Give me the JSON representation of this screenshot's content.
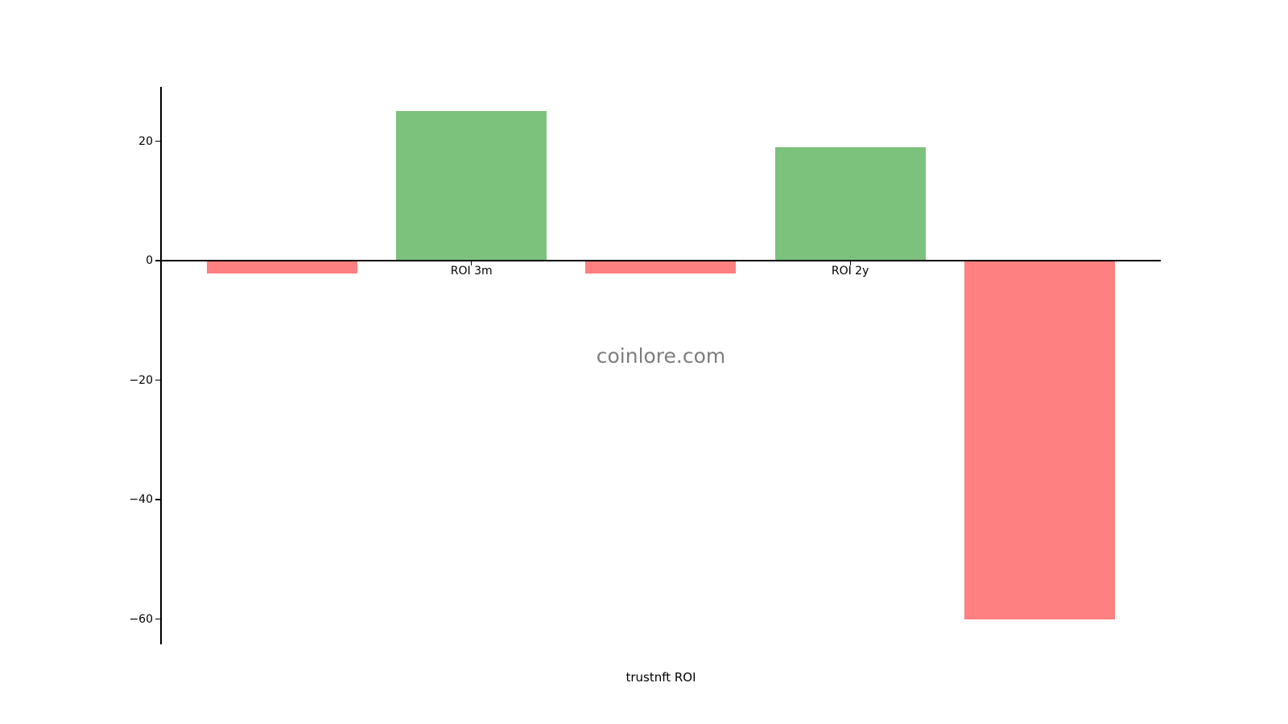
{
  "chart_data": {
    "type": "bar",
    "title": "",
    "xlabel": "trustnft ROI",
    "ylabel": "",
    "categories": [
      "",
      "ROI 3m",
      "",
      "ROI 2y",
      ""
    ],
    "values": [
      -2.2,
      25,
      -2.2,
      19,
      -60
    ],
    "bar_colors": [
      "#ff8080",
      "#7cc27c",
      "#ff8080",
      "#7cc27c",
      "#ff8080"
    ],
    "positive_color": "#7cc27c",
    "negative_color": "#ff8080",
    "yticks": [
      20,
      0,
      -20,
      -40,
      -60
    ],
    "ytick_labels": [
      "20",
      "0",
      "−20",
      "−40",
      "−60"
    ],
    "ylim": [
      -64.2,
      29.1
    ],
    "grid": false,
    "legend": null,
    "axis_color": "#000000",
    "text_color": "#000000",
    "watermark": "coinlore.com",
    "watermark_color": "#7d7d7d",
    "background_color": "#ffffff"
  }
}
